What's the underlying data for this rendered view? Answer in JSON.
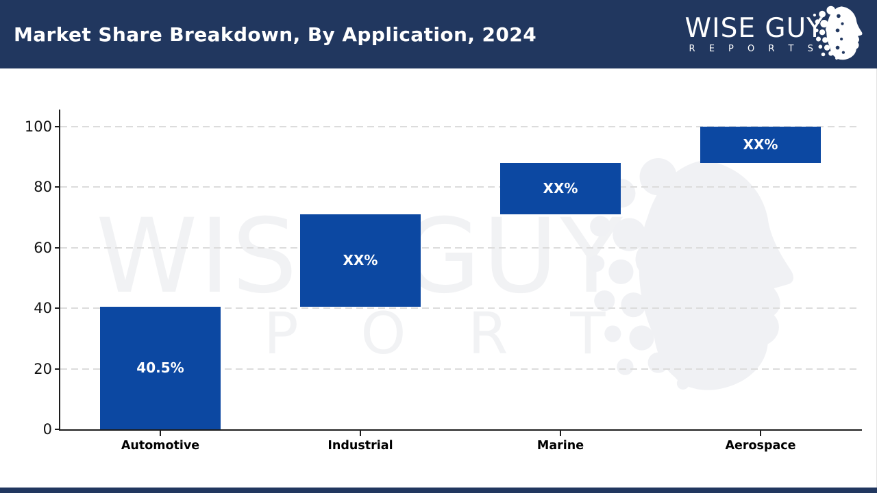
{
  "header": {
    "title": "Market Share Breakdown, By Application, 2024",
    "bg_color": "#21375f",
    "logo": {
      "line1": "WISE GUY",
      "line2": "R E P O R T S"
    }
  },
  "watermark": {
    "line1": "WISE GUY",
    "line2": "P O R T S"
  },
  "chart_data": {
    "type": "bar",
    "variant": "waterfall",
    "title": "Market Share Breakdown, By Application, 2024",
    "categories": [
      "Automotive",
      "Industrial",
      "Marine",
      "Aerospace"
    ],
    "segments": [
      {
        "category": "Automotive",
        "start": 0,
        "end": 40.5,
        "label": "40.5%"
      },
      {
        "category": "Industrial",
        "start": 40.5,
        "end": 71,
        "label": "XX%"
      },
      {
        "category": "Marine",
        "start": 71,
        "end": 88,
        "label": "XX%"
      },
      {
        "category": "Aerospace",
        "start": 88,
        "end": 100,
        "label": "XX%"
      }
    ],
    "y_ticks": [
      0,
      20,
      40,
      60,
      80,
      100
    ],
    "ylim": [
      0,
      105
    ],
    "xlabel": "",
    "ylabel": "",
    "grid": "dashed-horizontal",
    "legend": "none",
    "bar_color": "#0c48a2",
    "bar_label_color": "#ffffff"
  },
  "footer": {
    "bg_color": "#21375f"
  }
}
